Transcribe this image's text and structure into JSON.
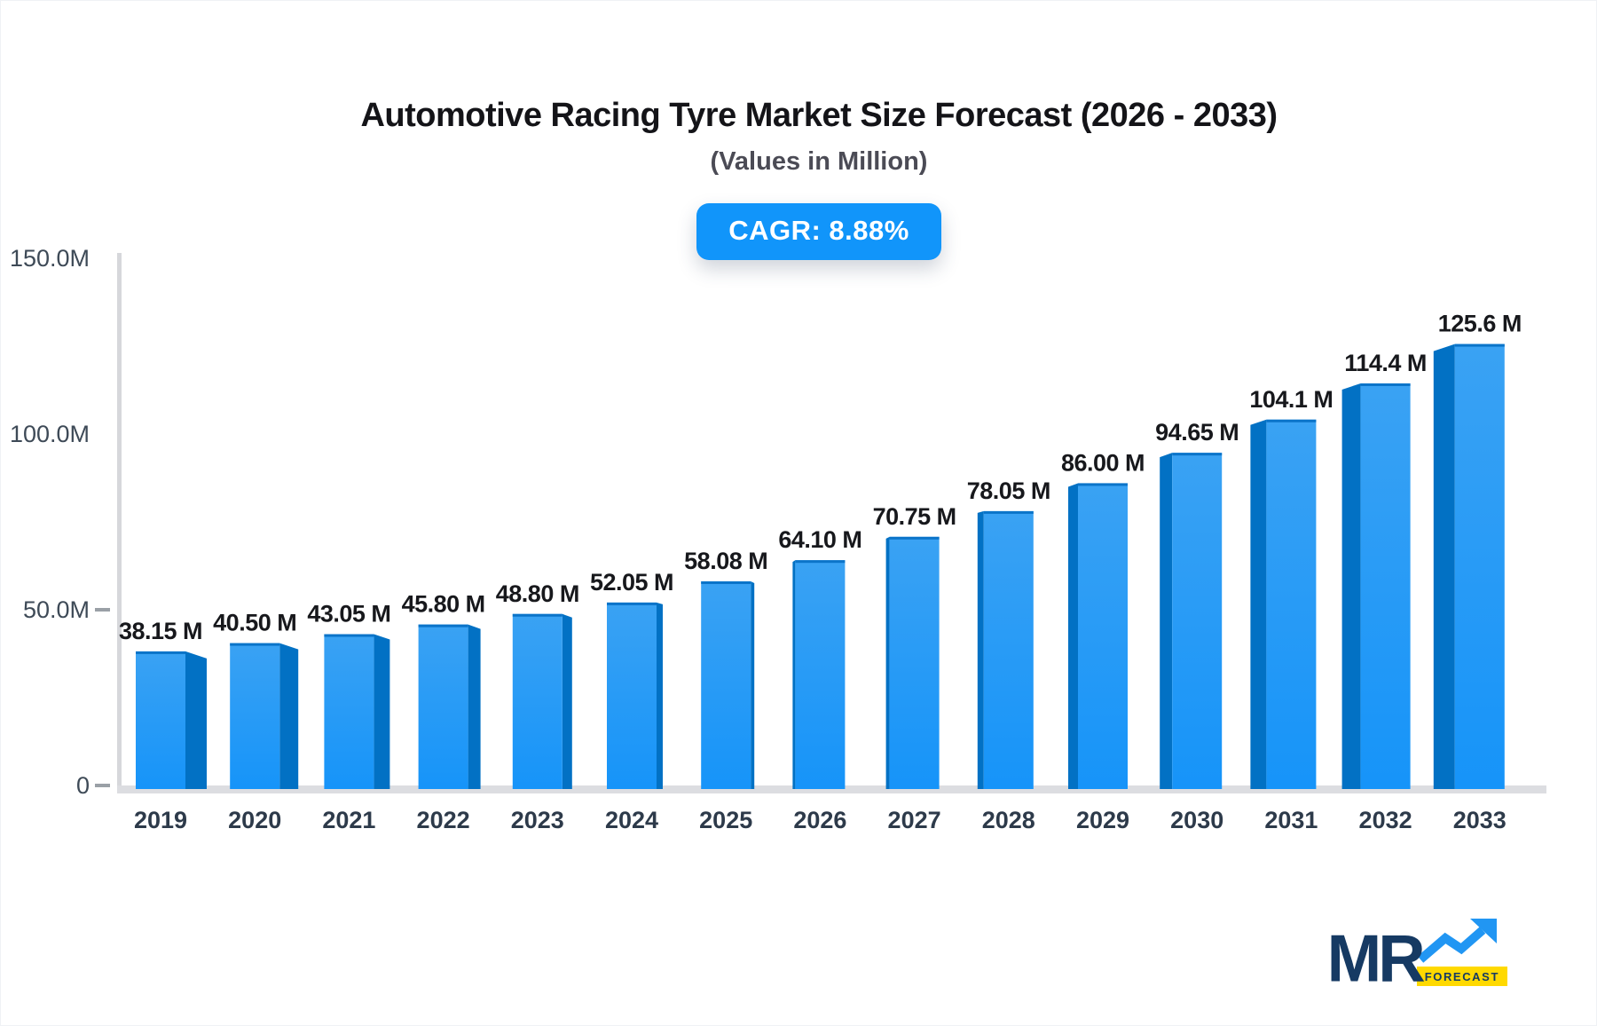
{
  "header": {
    "title": "Automotive Racing Tyre Market Size Forecast (2026 - 2033)",
    "subtitle": "(Values in Million)"
  },
  "badge": {
    "label": "CAGR: 8.88%",
    "color": "#1195fa"
  },
  "chart_data": {
    "type": "bar",
    "title": "Automotive Racing Tyre Market Size Forecast (2026 - 2033)",
    "subtitle": "(Values in Million)",
    "categories": [
      "2019",
      "2020",
      "2021",
      "2022",
      "2023",
      "2024",
      "2025",
      "2026",
      "2027",
      "2028",
      "2029",
      "2030",
      "2031",
      "2032",
      "2033"
    ],
    "values": [
      38.15,
      40.5,
      43.05,
      45.8,
      48.8,
      52.05,
      58.08,
      64.1,
      70.75,
      78.05,
      86.0,
      94.65,
      104.1,
      114.4,
      125.6
    ],
    "value_labels": [
      "38.15 M",
      "40.50 M",
      "43.05 M",
      "45.80 M",
      "48.80 M",
      "52.05 M",
      "58.08 M",
      "64.10 M",
      "70.75 M",
      "78.05 M",
      "86.00 M",
      "94.65 M",
      "104.1 M",
      "114.4 M",
      "125.6 M"
    ],
    "xlabel": "",
    "ylabel": "",
    "ylim": [
      0,
      150
    ],
    "grid": false,
    "legend": "none",
    "yticks": [
      {
        "value": 150,
        "label": "150.0M",
        "dash": false
      },
      {
        "value": 100,
        "label": "100.0M",
        "dash": false
      },
      {
        "value": 50,
        "label": "50.0M",
        "dash": true
      },
      {
        "value": 0,
        "label": "0",
        "dash": true
      }
    ],
    "colors": {
      "bar_front_top": "#3aa2f3",
      "bar_front_bottom": "#1694f9",
      "bar_side": "#0271c4",
      "bar_top_edge": "#0b74c9",
      "axis_line": "#d6d7db",
      "floor": "#dcdde1",
      "tick_dash": "#9aa0a6",
      "ytick_text": "#3e4a57",
      "category_text": "#2d3a4a",
      "value_text": "#17181c"
    }
  },
  "logo": {
    "mr": "MR",
    "forecast": "FORECAST",
    "navy": "#163a63",
    "blue": "#2196f3",
    "yellow": "#ffd900"
  }
}
